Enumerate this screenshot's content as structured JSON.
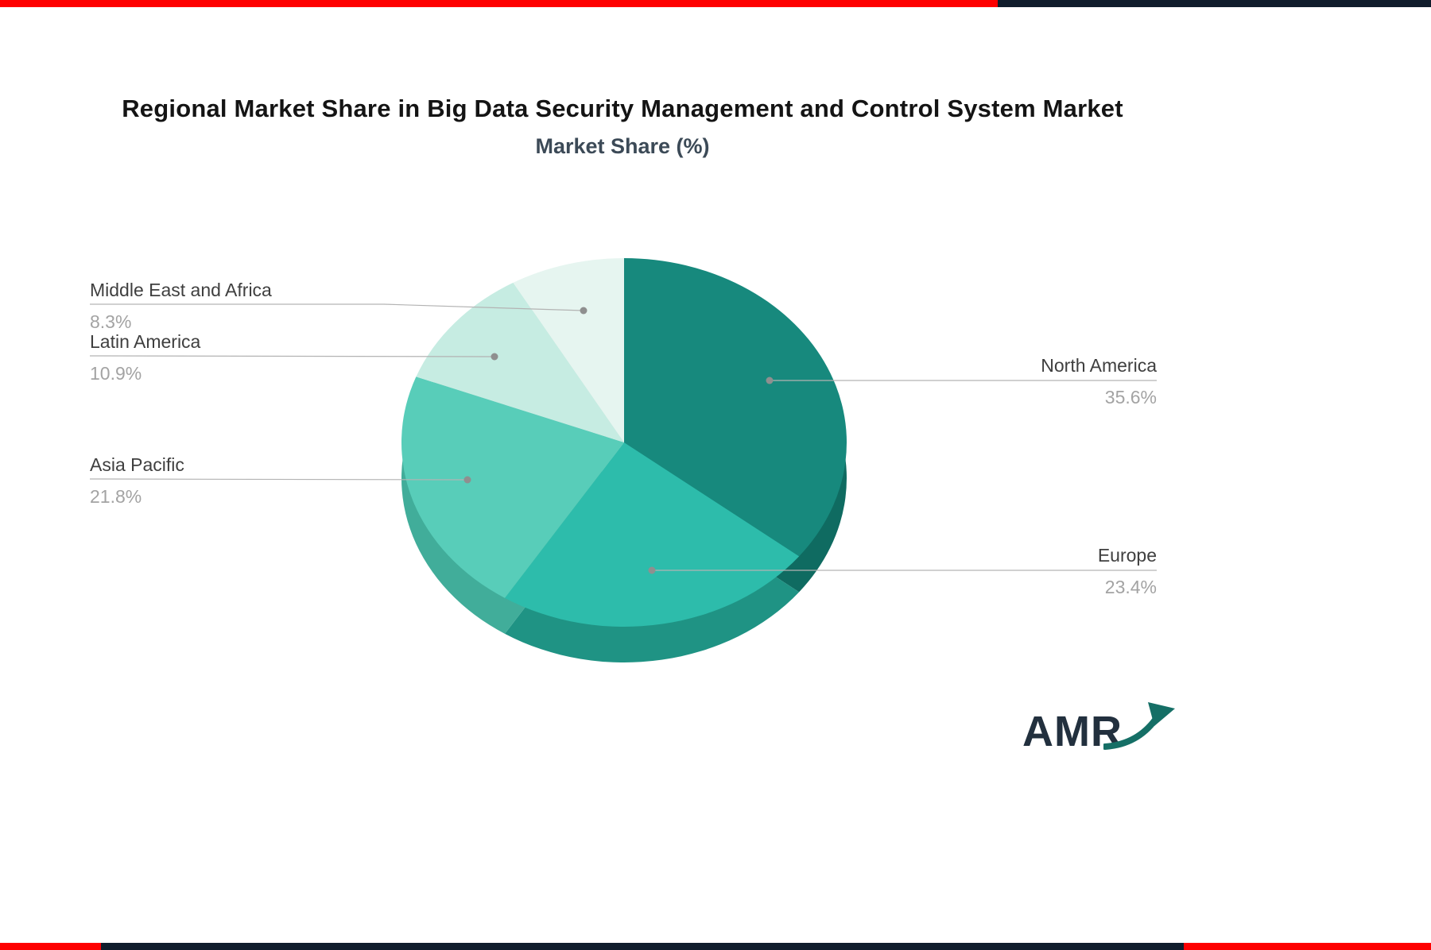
{
  "page": {
    "logo_text": "AMR"
  },
  "chart_data": {
    "type": "pie",
    "title": "Regional Market Share in Big Data Security Management and Control System Market",
    "subtitle": "Market Share (%)",
    "unit": "%",
    "effect": "3d",
    "start_angle_deg": 0,
    "direction": "clockwise",
    "legend_position": "none",
    "slices": [
      {
        "label": "North America",
        "value": 35.6,
        "value_text": "35.6%",
        "color": "#17897d",
        "depth_color": "#0f6b61",
        "label_side": "right"
      },
      {
        "label": "Europe",
        "value": 23.4,
        "value_text": "23.4%",
        "color": "#2dbcab",
        "depth_color": "#1f9384",
        "label_side": "right"
      },
      {
        "label": "Asia Pacific",
        "value": 21.8,
        "value_text": "21.8%",
        "color": "#58cdb9",
        "depth_color": "#41ad9a",
        "label_side": "left"
      },
      {
        "label": "Latin America",
        "value": 10.9,
        "value_text": "10.9%",
        "color": "#c6ece2",
        "depth_color": "#a2d4c8",
        "label_side": "left"
      },
      {
        "label": "Middle East and Africa",
        "value": 8.3,
        "value_text": "8.3%",
        "color": "#e6f5f0",
        "depth_color": "#c2ded6",
        "label_side": "left"
      }
    ],
    "leader_line_color": "#b3b3b3",
    "label_name_color": "#3f3f3f",
    "label_value_color": "#a3a3a3"
  }
}
